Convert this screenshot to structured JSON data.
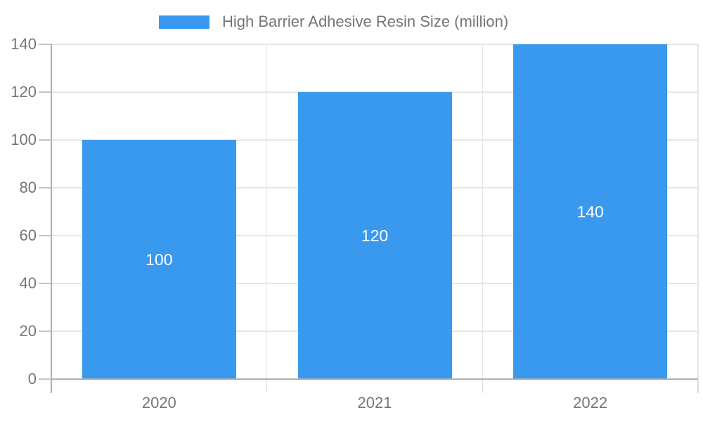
{
  "chart_data": {
    "type": "bar",
    "legend": "High Barrier Adhesive Resin Size (million)",
    "categories": [
      "2020",
      "2021",
      "2022"
    ],
    "series": [
      {
        "name": "High Barrier Adhesive Resin Size (million)",
        "values": [
          100,
          120,
          140
        ]
      }
    ],
    "bar_labels": [
      "100",
      "120",
      "140"
    ],
    "yticks": [
      0,
      20,
      40,
      60,
      80,
      100,
      120,
      140
    ],
    "ylim": [
      0,
      140
    ],
    "xlabel": "",
    "ylabel": "",
    "grid": true,
    "legend_position": "top-center",
    "colors": {
      "bar": "#3899EE",
      "axis_text": "#757575",
      "bar_label_text": "#FFFFFF",
      "gridline": "#E6E6E6",
      "axis_line": "#B0B0B0",
      "background": "#FFFFFF"
    }
  }
}
